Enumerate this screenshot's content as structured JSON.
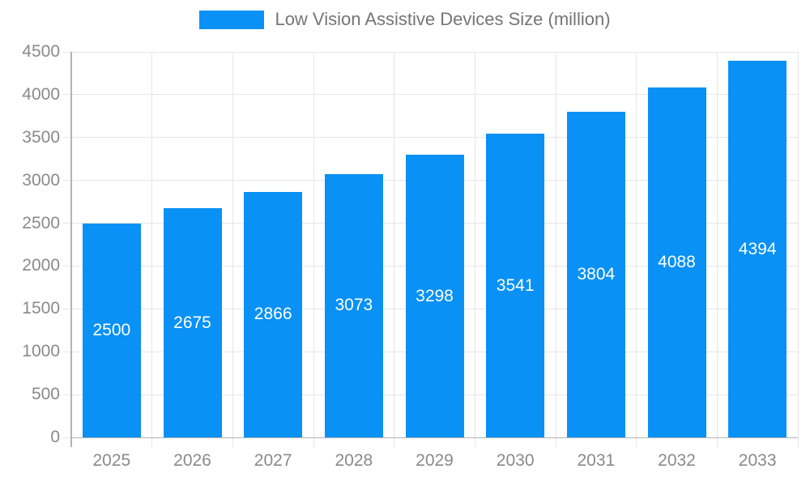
{
  "chart_data": {
    "type": "bar",
    "title": "Low Vision Assistive Devices Size (million)",
    "series_name": "Low Vision Assistive Devices Size (million)",
    "categories": [
      "2025",
      "2026",
      "2027",
      "2028",
      "2029",
      "2030",
      "2031",
      "2032",
      "2033"
    ],
    "values": [
      2500,
      2675,
      2866,
      3073,
      3298,
      3541,
      3804,
      4088,
      4394
    ],
    "xlabel": "",
    "ylabel": "",
    "ylim": [
      0,
      4500
    ],
    "ytick_step": 500,
    "yticks": [
      0,
      500,
      1000,
      1500,
      2000,
      2500,
      3000,
      3500,
      4000,
      4500
    ],
    "grid": true,
    "legend_position": "top",
    "bar_labels_shown": true,
    "colors": {
      "bar": "#0991f5",
      "grid": "#e5e5e5",
      "axis": "#b3b3b3",
      "tick_text": "#8a8a8a",
      "legend_text": "#757575",
      "bar_label": "#ffffff",
      "background": "#ffffff"
    }
  }
}
